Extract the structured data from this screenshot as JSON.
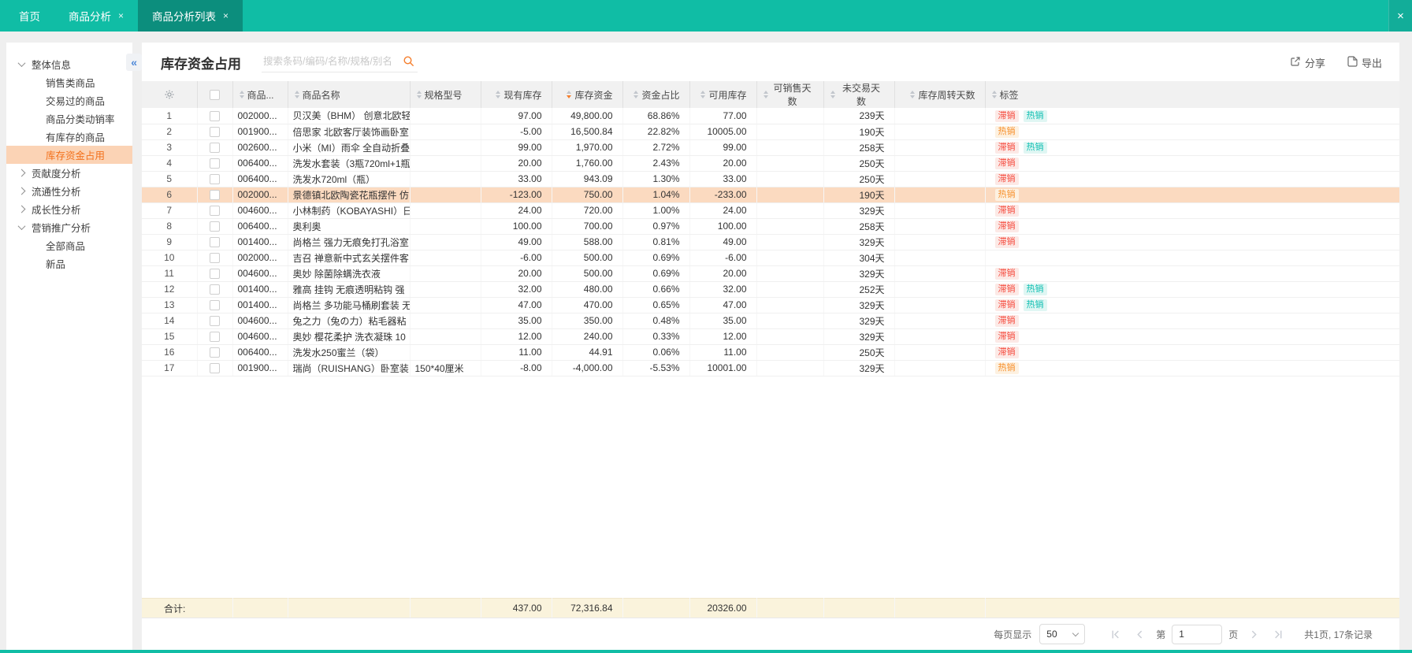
{
  "topbar": {
    "tabs": [
      {
        "label": "首页",
        "closable": false,
        "active": false
      },
      {
        "label": "商品分析",
        "closable": true,
        "active": false
      },
      {
        "label": "商品分析列表",
        "closable": true,
        "active": true
      }
    ],
    "tab_close_icon": "×",
    "window_close_icon": "×"
  },
  "sidebar": {
    "collapse_icon": "«",
    "items": [
      {
        "label": "整体信息",
        "level": 0,
        "expanded": true
      },
      {
        "label": "销售类商品",
        "level": 1
      },
      {
        "label": "交易过的商品",
        "level": 1
      },
      {
        "label": "商品分类动销率",
        "level": 1
      },
      {
        "label": "有库存的商品",
        "level": 1
      },
      {
        "label": "库存资金占用",
        "level": 1,
        "active": true
      },
      {
        "label": "贡献度分析",
        "level": 0,
        "expanded": false
      },
      {
        "label": "流通性分析",
        "level": 0,
        "expanded": false
      },
      {
        "label": "成长性分析",
        "level": 0,
        "expanded": false
      },
      {
        "label": "营销推广分析",
        "level": 0,
        "expanded": true
      },
      {
        "label": "全部商品",
        "level": 1
      },
      {
        "label": "新品",
        "level": 1
      }
    ]
  },
  "header": {
    "title": "库存资金占用",
    "search_placeholder": "搜索条码/编码/名称/规格/别名",
    "share_label": "分享",
    "export_label": "导出"
  },
  "table": {
    "columns": [
      {
        "key": "code",
        "label": "商品..."
      },
      {
        "key": "name",
        "label": "商品名称"
      },
      {
        "key": "spec",
        "label": "规格型号"
      },
      {
        "key": "stock",
        "label": "现有库存"
      },
      {
        "key": "fund",
        "label": "库存资金",
        "sorted": "desc"
      },
      {
        "key": "ratio",
        "label": "资金占比"
      },
      {
        "key": "available",
        "label": "可用库存"
      },
      {
        "key": "sell_days",
        "label": "可销售天数"
      },
      {
        "key": "no_trade_days",
        "label": "未交易天数"
      },
      {
        "key": "turnover_days",
        "label": "库存周转天数"
      },
      {
        "key": "tags",
        "label": "标签"
      }
    ],
    "rows": [
      {
        "num": "1",
        "code": "002000...",
        "name": "贝汉美（BHM） 创意北欧轻",
        "spec": "",
        "stock": "97.00",
        "fund": "49,800.00",
        "ratio": "68.86%",
        "available": "77.00",
        "sell_days": "",
        "no_trade_days": "239天",
        "turnover_days": "",
        "tags": [
          {
            "label": "滞销",
            "type": "stagnant"
          },
          {
            "label": "热销",
            "type": "hot"
          }
        ]
      },
      {
        "num": "2",
        "code": "001900...",
        "name": "倍思家 北欧客厅装饰画卧室",
        "spec": "",
        "stock": "-5.00",
        "fund": "16,500.84",
        "ratio": "22.82%",
        "available": "10005.00",
        "sell_days": "",
        "no_trade_days": "190天",
        "turnover_days": "",
        "tags": [
          {
            "label": "热销",
            "type": "hot2"
          }
        ]
      },
      {
        "num": "3",
        "code": "002600...",
        "name": "小米（MI）雨伞 全自动折叠",
        "spec": "",
        "stock": "99.00",
        "fund": "1,970.00",
        "ratio": "2.72%",
        "available": "99.00",
        "sell_days": "",
        "no_trade_days": "258天",
        "turnover_days": "",
        "tags": [
          {
            "label": "滞销",
            "type": "stagnant"
          },
          {
            "label": "热销",
            "type": "hot"
          }
        ]
      },
      {
        "num": "4",
        "code": "006400...",
        "name": "洗发水套装（3瓶720ml+1瓶",
        "spec": "",
        "stock": "20.00",
        "fund": "1,760.00",
        "ratio": "2.43%",
        "available": "20.00",
        "sell_days": "",
        "no_trade_days": "250天",
        "turnover_days": "",
        "tags": [
          {
            "label": "滞销",
            "type": "stagnant"
          }
        ]
      },
      {
        "num": "5",
        "code": "006400...",
        "name": "洗发水720ml（瓶）",
        "spec": "",
        "stock": "33.00",
        "fund": "943.09",
        "ratio": "1.30%",
        "available": "33.00",
        "sell_days": "",
        "no_trade_days": "250天",
        "turnover_days": "",
        "tags": [
          {
            "label": "滞销",
            "type": "stagnant"
          }
        ]
      },
      {
        "num": "6",
        "code": "002000...",
        "name": "景德镇北欧陶瓷花瓶摆件 仿",
        "spec": "",
        "stock": "-123.00",
        "fund": "750.00",
        "ratio": "1.04%",
        "available": "-233.00",
        "sell_days": "",
        "no_trade_days": "190天",
        "turnover_days": "",
        "tags": [
          {
            "label": "热销",
            "type": "hot2"
          }
        ],
        "highlight": true
      },
      {
        "num": "7",
        "code": "004600...",
        "name": "小林制药（KOBAYASHI）日",
        "spec": "",
        "stock": "24.00",
        "fund": "720.00",
        "ratio": "1.00%",
        "available": "24.00",
        "sell_days": "",
        "no_trade_days": "329天",
        "turnover_days": "",
        "tags": [
          {
            "label": "滞销",
            "type": "stagnant"
          }
        ]
      },
      {
        "num": "8",
        "code": "006400...",
        "name": "奥利奥",
        "spec": "",
        "stock": "100.00",
        "fund": "700.00",
        "ratio": "0.97%",
        "available": "100.00",
        "sell_days": "",
        "no_trade_days": "258天",
        "turnover_days": "",
        "tags": [
          {
            "label": "滞销",
            "type": "stagnant"
          }
        ]
      },
      {
        "num": "9",
        "code": "001400...",
        "name": "尚格兰 强力无痕免打孔浴室",
        "spec": "",
        "stock": "49.00",
        "fund": "588.00",
        "ratio": "0.81%",
        "available": "49.00",
        "sell_days": "",
        "no_trade_days": "329天",
        "turnover_days": "",
        "tags": [
          {
            "label": "滞销",
            "type": "stagnant"
          }
        ]
      },
      {
        "num": "10",
        "code": "002000...",
        "name": "吉召 禅意新中式玄关摆件客",
        "spec": "",
        "stock": "-6.00",
        "fund": "500.00",
        "ratio": "0.69%",
        "available": "-6.00",
        "sell_days": "",
        "no_trade_days": "304天",
        "turnover_days": "",
        "tags": []
      },
      {
        "num": "11",
        "code": "004600...",
        "name": "奥妙 除菌除螨洗衣液",
        "spec": "",
        "stock": "20.00",
        "fund": "500.00",
        "ratio": "0.69%",
        "available": "20.00",
        "sell_days": "",
        "no_trade_days": "329天",
        "turnover_days": "",
        "tags": [
          {
            "label": "滞销",
            "type": "stagnant"
          }
        ]
      },
      {
        "num": "12",
        "code": "001400...",
        "name": "雅高 挂钩 无痕透明粘钩 强",
        "spec": "",
        "stock": "32.00",
        "fund": "480.00",
        "ratio": "0.66%",
        "available": "32.00",
        "sell_days": "",
        "no_trade_days": "252天",
        "turnover_days": "",
        "tags": [
          {
            "label": "滞销",
            "type": "stagnant"
          },
          {
            "label": "热销",
            "type": "hot"
          }
        ]
      },
      {
        "num": "13",
        "code": "001400...",
        "name": "尚格兰 多功能马桶刷套装 无",
        "spec": "",
        "stock": "47.00",
        "fund": "470.00",
        "ratio": "0.65%",
        "available": "47.00",
        "sell_days": "",
        "no_trade_days": "329天",
        "turnover_days": "",
        "tags": [
          {
            "label": "滞销",
            "type": "stagnant"
          },
          {
            "label": "热销",
            "type": "hot"
          }
        ]
      },
      {
        "num": "14",
        "code": "004600...",
        "name": "兔之力（兔の力）粘毛器粘",
        "spec": "",
        "stock": "35.00",
        "fund": "350.00",
        "ratio": "0.48%",
        "available": "35.00",
        "sell_days": "",
        "no_trade_days": "329天",
        "turnover_days": "",
        "tags": [
          {
            "label": "滞销",
            "type": "stagnant"
          }
        ]
      },
      {
        "num": "15",
        "code": "004600...",
        "name": "奥妙 樱花柔护 洗衣凝珠 10",
        "spec": "",
        "stock": "12.00",
        "fund": "240.00",
        "ratio": "0.33%",
        "available": "12.00",
        "sell_days": "",
        "no_trade_days": "329天",
        "turnover_days": "",
        "tags": [
          {
            "label": "滞销",
            "type": "stagnant"
          }
        ]
      },
      {
        "num": "16",
        "code": "006400...",
        "name": "洗发水250蜜兰（袋）",
        "spec": "",
        "stock": "11.00",
        "fund": "44.91",
        "ratio": "0.06%",
        "available": "11.00",
        "sell_days": "",
        "no_trade_days": "250天",
        "turnover_days": "",
        "tags": [
          {
            "label": "滞销",
            "type": "stagnant"
          }
        ]
      },
      {
        "num": "17",
        "code": "001900...",
        "name": "瑞尚（RUISHANG）卧室装",
        "spec": "150*40厘米",
        "stock": "-8.00",
        "fund": "-4,000.00",
        "ratio": "-5.53%",
        "available": "10001.00",
        "sell_days": "",
        "no_trade_days": "329天",
        "turnover_days": "",
        "tags": [
          {
            "label": "热销",
            "type": "hot2"
          }
        ]
      }
    ],
    "totals": {
      "label": "合计:",
      "stock": "437.00",
      "fund": "72,316.84",
      "available": "20326.00"
    }
  },
  "pagination": {
    "per_page_label": "每页显示",
    "per_page": "50",
    "page_prefix": "第",
    "page_value": "1",
    "page_suffix": "页",
    "summary": "共1页, 17条记录"
  },
  "colors": {
    "accent_teal": "#10BDA5",
    "active_tab": "#0C8E7D",
    "accent_orange": "#F57E2C",
    "sidebar_active_bg": "#FBD3B5",
    "sidebar_active_text": "#F3701A",
    "row_highlight_bg": "#FBDAC0",
    "totals_bg": "#FAF3DC",
    "tag_stagnant": "#F5483B",
    "tag_hot_teal": "#0FBFB2",
    "tag_hot_orange": "#F78E28"
  }
}
